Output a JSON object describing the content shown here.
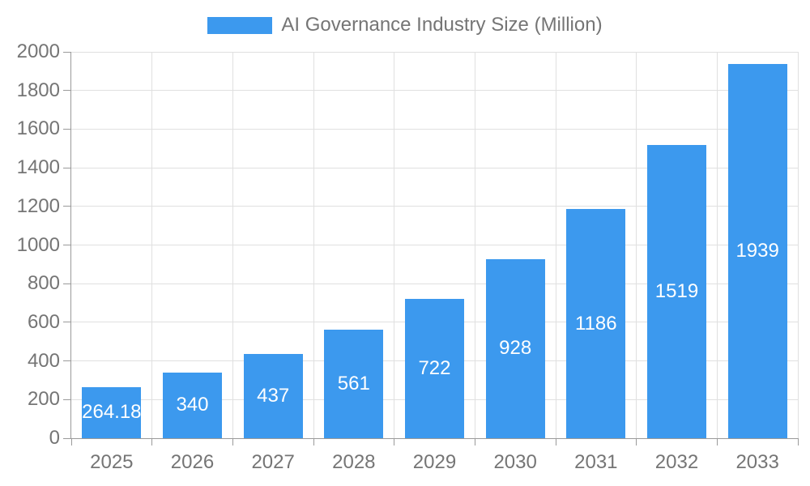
{
  "legend": {
    "label": "AI Governance Industry Size (Million)"
  },
  "chart_data": {
    "type": "bar",
    "title": "AI Governance Industry Size (Million)",
    "xlabel": "",
    "ylabel": "",
    "categories": [
      "2025",
      "2026",
      "2027",
      "2028",
      "2029",
      "2030",
      "2031",
      "2032",
      "2033"
    ],
    "values": [
      264.18,
      340,
      437,
      561,
      722,
      928,
      1186,
      1519,
      1939
    ],
    "value_labels": [
      "264.18",
      "340",
      "437",
      "561",
      "722",
      "928",
      "1186",
      "1519",
      "1939"
    ],
    "ylim": [
      0,
      2000
    ],
    "ytick_step": 200,
    "ytick_labels": [
      "0",
      "200",
      "400",
      "600",
      "800",
      "1000",
      "1200",
      "1400",
      "1600",
      "1800",
      "2000"
    ],
    "grid": true,
    "legend_position": "top",
    "colors": {
      "bar": "#3C99EE",
      "grid": "#E0E0E0",
      "axis": "#9A9A9A",
      "tick_text": "#757575",
      "value_text": "#FFFFFF"
    }
  }
}
